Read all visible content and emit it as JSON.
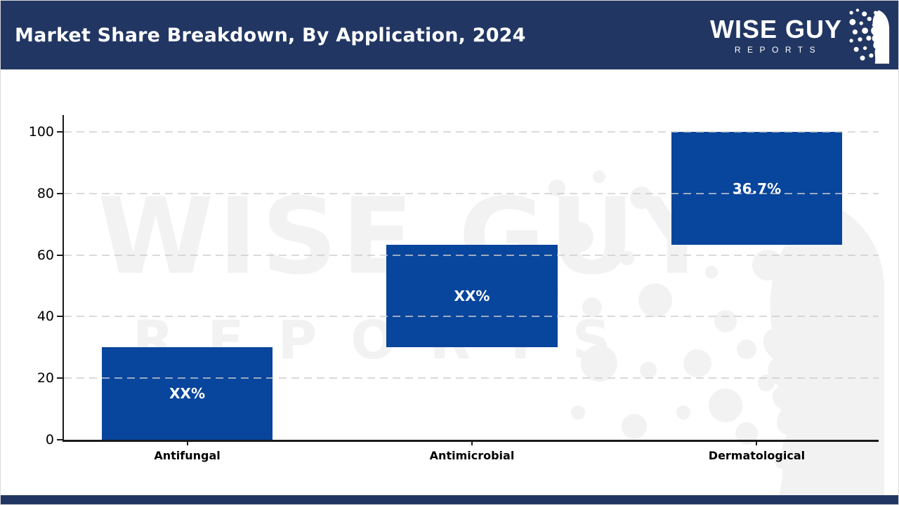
{
  "colors": {
    "header_bg": "#213663",
    "footer_bg": "#213663",
    "bar": "#08459c",
    "bar_label": "#ffffff",
    "watermark": "#f2f2f2",
    "grid": "#cdcdcd",
    "axis": "#1a1a1a"
  },
  "header": {
    "title": "Market Share Breakdown, By Application, 2024"
  },
  "logo": {
    "line1": "WISE GUY",
    "line2": "REPORTS"
  },
  "watermark": {
    "line1": "WISE GUY",
    "line2": "REPORTS"
  },
  "chart_data": {
    "type": "bar",
    "subtype": "floating-segment-breakdown",
    "title": "Market Share Breakdown, By Application, 2024",
    "categories": [
      "Antifungal",
      "Antimicrobial",
      "Dermatological"
    ],
    "segments": [
      {
        "category": "Antifungal",
        "start": 0,
        "end": 30,
        "label": "XX%"
      },
      {
        "category": "Antimicrobial",
        "start": 30,
        "end": 63.3,
        "label": "XX%"
      },
      {
        "category": "Dermatological",
        "start": 63.3,
        "end": 100,
        "label": "36.7%"
      }
    ],
    "xlabel": "",
    "ylabel": "",
    "yticks": [
      0,
      20,
      40,
      60,
      80,
      100
    ],
    "ylim": [
      0,
      105.5
    ],
    "xlim": [
      -0.433,
      2.433
    ],
    "bar_width": 0.6,
    "grid": "horizontal-dashed",
    "legend": "none"
  }
}
